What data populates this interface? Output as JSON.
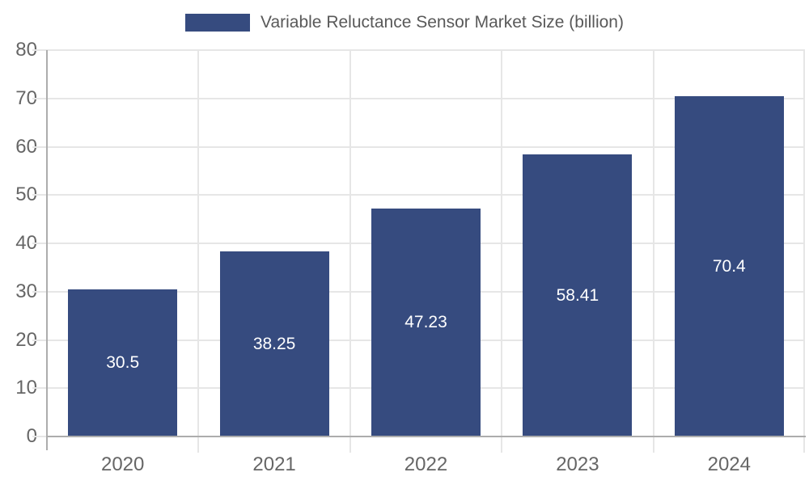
{
  "chart_data": {
    "type": "bar",
    "title": "Variable Reluctance Sensor Market Size (billion)",
    "legend": {
      "label": "Variable Reluctance Sensor Market Size (billion)",
      "position": "top-center"
    },
    "categories": [
      "2020",
      "2021",
      "2022",
      "2023",
      "2024"
    ],
    "values": [
      30.5,
      38.25,
      47.23,
      58.41,
      70.4
    ],
    "bar_labels": [
      "30.5",
      "38.25",
      "47.23",
      "58.41",
      "70.4"
    ],
    "xlabel": "",
    "ylabel": "",
    "ylim": [
      0,
      80
    ],
    "yticks": [
      0,
      10,
      20,
      30,
      40,
      50,
      60,
      70,
      80
    ],
    "grid": true,
    "colors": {
      "bar": "#364B7F",
      "bar_label": "#FFFFFF",
      "gridline": "#E6E6E6",
      "axis_line": "#ADADAD",
      "tick_label": "#666666",
      "legend_text": "#595959",
      "background": "#FFFFFF"
    }
  }
}
